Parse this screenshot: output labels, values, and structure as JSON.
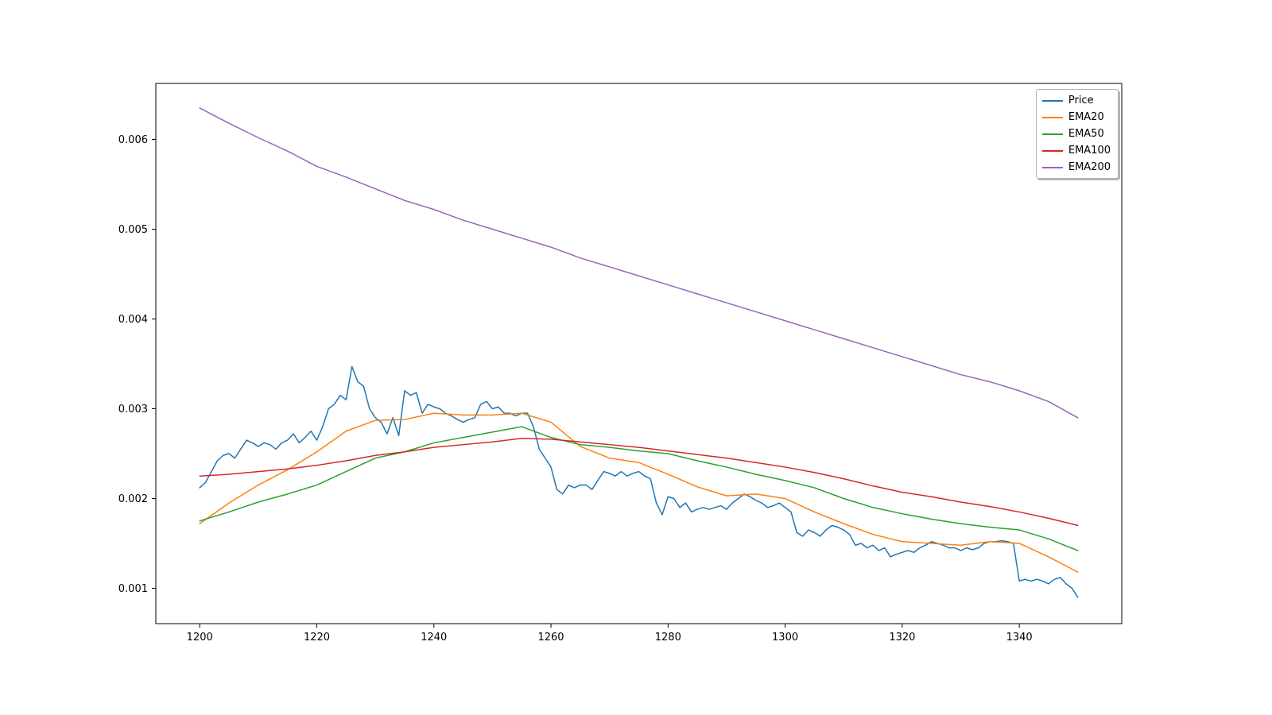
{
  "chart_data": {
    "type": "line",
    "title": "",
    "xlabel": "",
    "ylabel": "",
    "grid": false,
    "xlim": [
      1192.5,
      1357.5
    ],
    "ylim": [
      0.000606,
      0.006624
    ],
    "x_ticks": {
      "values": [
        1200,
        1220,
        1240,
        1260,
        1280,
        1300,
        1320,
        1340
      ],
      "labels": [
        "1200",
        "1220",
        "1240",
        "1260",
        "1280",
        "1300",
        "1320",
        "1340"
      ]
    },
    "y_ticks": {
      "values": [
        0.001,
        0.002,
        0.003,
        0.004,
        0.005,
        0.006
      ],
      "labels": [
        "0.001",
        "0.002",
        "0.003",
        "0.004",
        "0.005",
        "0.006"
      ]
    },
    "legend": {
      "position": "upper right",
      "entries": [
        "Price",
        "EMA20",
        "EMA50",
        "EMA100",
        "EMA200"
      ]
    },
    "series": [
      {
        "name": "Price",
        "color": "#1f77b4",
        "x_start": 1200,
        "x_step": 1,
        "values": [
          0.00212,
          0.00218,
          0.0023,
          0.00242,
          0.00248,
          0.0025,
          0.00245,
          0.00255,
          0.00265,
          0.00262,
          0.00258,
          0.00262,
          0.0026,
          0.00255,
          0.00262,
          0.00265,
          0.00272,
          0.00262,
          0.00268,
          0.00275,
          0.00265,
          0.0028,
          0.003,
          0.00305,
          0.00315,
          0.0031,
          0.00347,
          0.0033,
          0.00325,
          0.003,
          0.0029,
          0.00285,
          0.00272,
          0.0029,
          0.0027,
          0.0032,
          0.00315,
          0.00318,
          0.00295,
          0.00305,
          0.00302,
          0.003,
          0.00295,
          0.00292,
          0.00288,
          0.00285,
          0.00288,
          0.0029,
          0.00305,
          0.00308,
          0.003,
          0.00302,
          0.00295,
          0.00295,
          0.00292,
          0.00295,
          0.00295,
          0.0028,
          0.00255,
          0.00245,
          0.00235,
          0.0021,
          0.00205,
          0.00215,
          0.00212,
          0.00215,
          0.00215,
          0.0021,
          0.0022,
          0.0023,
          0.00228,
          0.00225,
          0.0023,
          0.00225,
          0.00228,
          0.0023,
          0.00225,
          0.00222,
          0.00195,
          0.00182,
          0.00202,
          0.002,
          0.0019,
          0.00195,
          0.00185,
          0.00188,
          0.0019,
          0.00188,
          0.0019,
          0.00192,
          0.00188,
          0.00195,
          0.002,
          0.00205,
          0.00202,
          0.00198,
          0.00195,
          0.0019,
          0.00192,
          0.00195,
          0.0019,
          0.00185,
          0.00162,
          0.00158,
          0.00165,
          0.00162,
          0.00158,
          0.00165,
          0.0017,
          0.00168,
          0.00165,
          0.0016,
          0.00148,
          0.0015,
          0.00145,
          0.00148,
          0.00142,
          0.00145,
          0.00135,
          0.00138,
          0.0014,
          0.00142,
          0.0014,
          0.00145,
          0.00148,
          0.00152,
          0.0015,
          0.00148,
          0.00145,
          0.00145,
          0.00142,
          0.00145,
          0.00143,
          0.00145,
          0.0015,
          0.00152,
          0.00152,
          0.00153,
          0.00152,
          0.0015,
          0.00108,
          0.0011,
          0.00108,
          0.0011,
          0.00108,
          0.00105,
          0.0011,
          0.00112,
          0.00105,
          0.001,
          0.0009
        ]
      },
      {
        "name": "EMA20",
        "color": "#ff7f0e",
        "x_start": 1200,
        "x_step": 5,
        "values": [
          0.00172,
          0.00195,
          0.00215,
          0.00232,
          0.00252,
          0.00275,
          0.00287,
          0.00288,
          0.00295,
          0.00293,
          0.00293,
          0.00295,
          0.00285,
          0.00258,
          0.00245,
          0.0024,
          0.00227,
          0.00213,
          0.00203,
          0.00205,
          0.002,
          0.00185,
          0.00172,
          0.0016,
          0.00152,
          0.0015,
          0.00148,
          0.00152,
          0.0015,
          0.00135,
          0.00118
        ]
      },
      {
        "name": "EMA50",
        "color": "#2ca02c",
        "x_start": 1200,
        "x_step": 5,
        "values": [
          0.00175,
          0.00185,
          0.00196,
          0.00205,
          0.00215,
          0.0023,
          0.00245,
          0.00252,
          0.00262,
          0.00268,
          0.00274,
          0.0028,
          0.00268,
          0.0026,
          0.00257,
          0.00253,
          0.0025,
          0.00242,
          0.00235,
          0.00227,
          0.0022,
          0.00212,
          0.002,
          0.0019,
          0.00183,
          0.00177,
          0.00172,
          0.00168,
          0.00165,
          0.00155,
          0.00142
        ]
      },
      {
        "name": "EMA100",
        "color": "#d62728",
        "x_start": 1200,
        "x_step": 5,
        "values": [
          0.00225,
          0.00227,
          0.0023,
          0.00233,
          0.00237,
          0.00242,
          0.00248,
          0.00252,
          0.00257,
          0.0026,
          0.00263,
          0.00267,
          0.00266,
          0.00263,
          0.0026,
          0.00257,
          0.00253,
          0.00249,
          0.00245,
          0.0024,
          0.00235,
          0.00229,
          0.00222,
          0.00214,
          0.00207,
          0.00202,
          0.00196,
          0.00191,
          0.00185,
          0.00178,
          0.0017
        ]
      },
      {
        "name": "EMA200",
        "color": "#9467bd",
        "x_start": 1200,
        "x_step": 5,
        "values": [
          0.00635,
          0.00618,
          0.00602,
          0.00587,
          0.0057,
          0.00558,
          0.00545,
          0.00532,
          0.00522,
          0.0051,
          0.005,
          0.0049,
          0.0048,
          0.00468,
          0.00458,
          0.00448,
          0.00438,
          0.00428,
          0.00418,
          0.00408,
          0.00398,
          0.00388,
          0.00378,
          0.00368,
          0.00358,
          0.00348,
          0.00338,
          0.0033,
          0.0032,
          0.00308,
          0.0029
        ]
      }
    ]
  }
}
